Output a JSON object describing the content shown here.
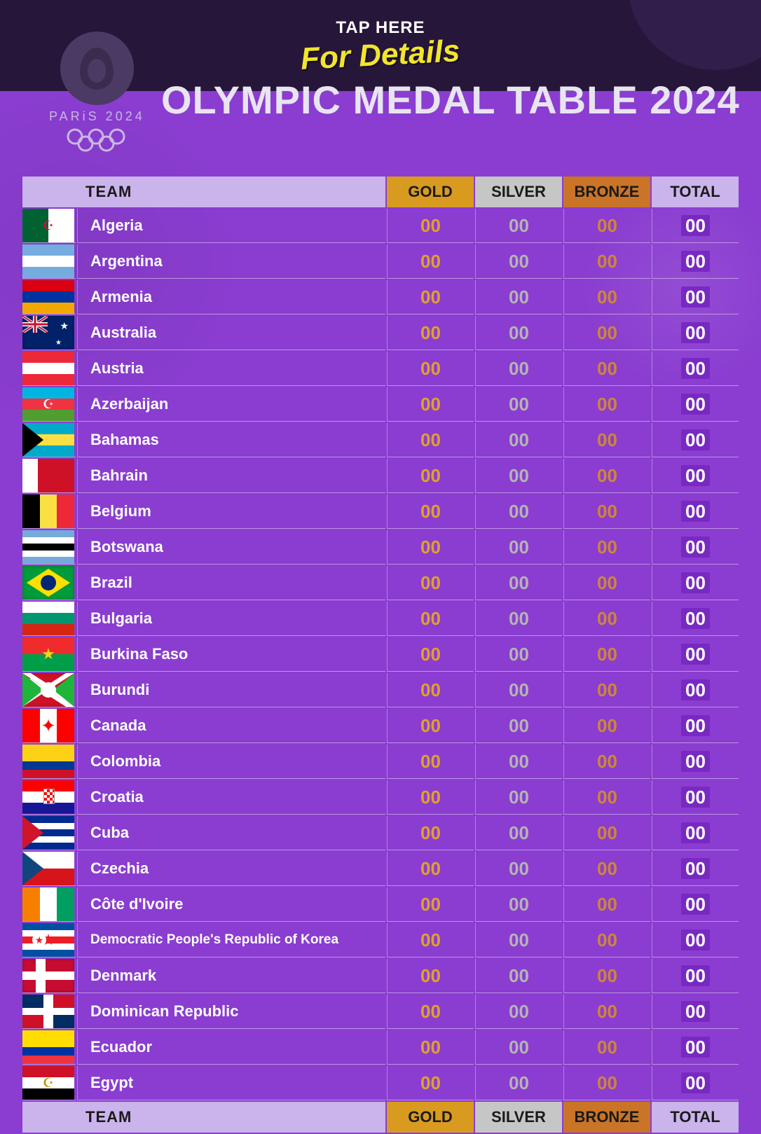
{
  "banner": {
    "line1": "TAP HERE",
    "line2": "For Details"
  },
  "logo_text": "PARiS 2024",
  "title": "OLYMPIC MEDAL TABLE 2024",
  "headers": {
    "team": "TEAM",
    "gold": "GOLD",
    "silver": "SILVER",
    "bronze": "BRONZE",
    "total": "TOTAL"
  },
  "colors": {
    "background": "#8a3dd0",
    "header_team": "#cbb3ec",
    "header_gold": "#d99b1f",
    "header_silver": "#c6c6c6",
    "header_bronze": "#c97427",
    "header_total": "#cbb3ec",
    "num_gold": "#e0a128",
    "num_silver": "#b4b4b4",
    "num_bronze": "#cd863a",
    "num_total": "#ffffff",
    "banner_bg": "#26163a",
    "accent_yellow": "#f2e52c"
  },
  "rows": [
    {
      "team": "Algeria",
      "gold": "00",
      "silver": "00",
      "bronze": "00",
      "total": "00",
      "flag": {
        "type": "v2",
        "c": [
          "#006233",
          "#ffffff"
        ],
        "emblem": "#d21034"
      }
    },
    {
      "team": "Argentina",
      "gold": "00",
      "silver": "00",
      "bronze": "00",
      "total": "00",
      "flag": {
        "type": "h3",
        "c": [
          "#74acdf",
          "#ffffff",
          "#74acdf"
        ]
      }
    },
    {
      "team": "Armenia",
      "gold": "00",
      "silver": "00",
      "bronze": "00",
      "total": "00",
      "flag": {
        "type": "h3",
        "c": [
          "#d90012",
          "#0033a0",
          "#f2a800"
        ]
      }
    },
    {
      "team": "Australia",
      "gold": "00",
      "silver": "00",
      "bronze": "00",
      "total": "00",
      "flag": {
        "type": "solid",
        "c": [
          "#012169"
        ],
        "union": true
      }
    },
    {
      "team": "Austria",
      "gold": "00",
      "silver": "00",
      "bronze": "00",
      "total": "00",
      "flag": {
        "type": "h3",
        "c": [
          "#ed2939",
          "#ffffff",
          "#ed2939"
        ]
      }
    },
    {
      "team": "Azerbaijan",
      "gold": "00",
      "silver": "00",
      "bronze": "00",
      "total": "00",
      "flag": {
        "type": "h3",
        "c": [
          "#00b5e2",
          "#ef3340",
          "#509e2f"
        ],
        "emblem": "#ffffff"
      }
    },
    {
      "team": "Bahamas",
      "gold": "00",
      "silver": "00",
      "bronze": "00",
      "total": "00",
      "flag": {
        "type": "h3",
        "c": [
          "#00abc9",
          "#fae042",
          "#00abc9"
        ],
        "tri": "#000000"
      }
    },
    {
      "team": "Bahrain",
      "gold": "00",
      "silver": "00",
      "bronze": "00",
      "total": "00",
      "flag": {
        "type": "v2",
        "c": [
          "#ffffff",
          "#ce1126"
        ],
        "ratio": "30% 70%"
      }
    },
    {
      "team": "Belgium",
      "gold": "00",
      "silver": "00",
      "bronze": "00",
      "total": "00",
      "flag": {
        "type": "v3",
        "c": [
          "#000000",
          "#fae042",
          "#ed2939"
        ]
      }
    },
    {
      "team": "Botswana",
      "gold": "00",
      "silver": "00",
      "bronze": "00",
      "total": "00",
      "flag": {
        "type": "h5",
        "c": [
          "#75aadb",
          "#ffffff",
          "#000000",
          "#ffffff",
          "#75aadb"
        ]
      }
    },
    {
      "team": "Brazil",
      "gold": "00",
      "silver": "00",
      "bronze": "00",
      "total": "00",
      "flag": {
        "type": "solid",
        "c": [
          "#009b3a"
        ],
        "diamond": "#fedf00",
        "disc": "#002776"
      }
    },
    {
      "team": "Bulgaria",
      "gold": "00",
      "silver": "00",
      "bronze": "00",
      "total": "00",
      "flag": {
        "type": "h3",
        "c": [
          "#ffffff",
          "#00966e",
          "#d62612"
        ]
      }
    },
    {
      "team": "Burkina Faso",
      "gold": "00",
      "silver": "00",
      "bronze": "00",
      "total": "00",
      "flag": {
        "type": "h2",
        "c": [
          "#ef2b2d",
          "#009e49"
        ],
        "star": "#fcd116"
      }
    },
    {
      "team": "Burundi",
      "gold": "00",
      "silver": "00",
      "bronze": "00",
      "total": "00",
      "flag": {
        "type": "x",
        "c": [
          "#ce1126",
          "#1eb53a"
        ],
        "cross": "#ffffff"
      }
    },
    {
      "team": "Canada",
      "gold": "00",
      "silver": "00",
      "bronze": "00",
      "total": "00",
      "flag": {
        "type": "v3",
        "c": [
          "#ff0000",
          "#ffffff",
          "#ff0000"
        ],
        "leaf": "#ff0000"
      }
    },
    {
      "team": "Colombia",
      "gold": "00",
      "silver": "00",
      "bronze": "00",
      "total": "00",
      "flag": {
        "type": "h3w",
        "c": [
          "#fcd116",
          "#003893",
          "#ce1126"
        ],
        "w": [
          "50%",
          "25%",
          "25%"
        ]
      }
    },
    {
      "team": "Croatia",
      "gold": "00",
      "silver": "00",
      "bronze": "00",
      "total": "00",
      "flag": {
        "type": "h3",
        "c": [
          "#ff0000",
          "#ffffff",
          "#171796"
        ],
        "check": true
      }
    },
    {
      "team": "Cuba",
      "gold": "00",
      "silver": "00",
      "bronze": "00",
      "total": "00",
      "flag": {
        "type": "h5",
        "c": [
          "#002a8f",
          "#ffffff",
          "#002a8f",
          "#ffffff",
          "#002a8f"
        ],
        "tri": "#cf142b"
      }
    },
    {
      "team": "Czechia",
      "gold": "00",
      "silver": "00",
      "bronze": "00",
      "total": "00",
      "flag": {
        "type": "h2",
        "c": [
          "#ffffff",
          "#d7141a"
        ],
        "tri": "#11457e"
      }
    },
    {
      "team": "Côte d'Ivoire",
      "gold": "00",
      "silver": "00",
      "bronze": "00",
      "total": "00",
      "flag": {
        "type": "v3",
        "c": [
          "#f77f00",
          "#ffffff",
          "#009e60"
        ]
      }
    },
    {
      "team": "Democratic People's Republic of Korea",
      "gold": "00",
      "silver": "00",
      "bronze": "00",
      "total": "00",
      "flag": {
        "type": "h5",
        "c": [
          "#024fa2",
          "#ffffff",
          "#ed1c27",
          "#ffffff",
          "#024fa2"
        ],
        "disc": "#ffffff",
        "star": "#ed1c27"
      },
      "small": true
    },
    {
      "team": "Denmark",
      "gold": "00",
      "silver": "00",
      "bronze": "00",
      "total": "00",
      "flag": {
        "type": "solid",
        "c": [
          "#c60c30"
        ],
        "nordic": "#ffffff"
      }
    },
    {
      "team": "Dominican Republic",
      "gold": "00",
      "silver": "00",
      "bronze": "00",
      "total": "00",
      "flag": {
        "type": "quad",
        "c": [
          "#002d62",
          "#ce1126",
          "#ce1126",
          "#002d62"
        ],
        "cross": "#ffffff"
      }
    },
    {
      "team": "Ecuador",
      "gold": "00",
      "silver": "00",
      "bronze": "00",
      "total": "00",
      "flag": {
        "type": "h3w",
        "c": [
          "#ffdd00",
          "#0033a0",
          "#ef3340"
        ],
        "w": [
          "50%",
          "25%",
          "25%"
        ]
      }
    },
    {
      "team": "Egypt",
      "gold": "00",
      "silver": "00",
      "bronze": "00",
      "total": "00",
      "flag": {
        "type": "h3",
        "c": [
          "#ce1126",
          "#ffffff",
          "#000000"
        ],
        "emblem": "#c09300"
      }
    }
  ]
}
